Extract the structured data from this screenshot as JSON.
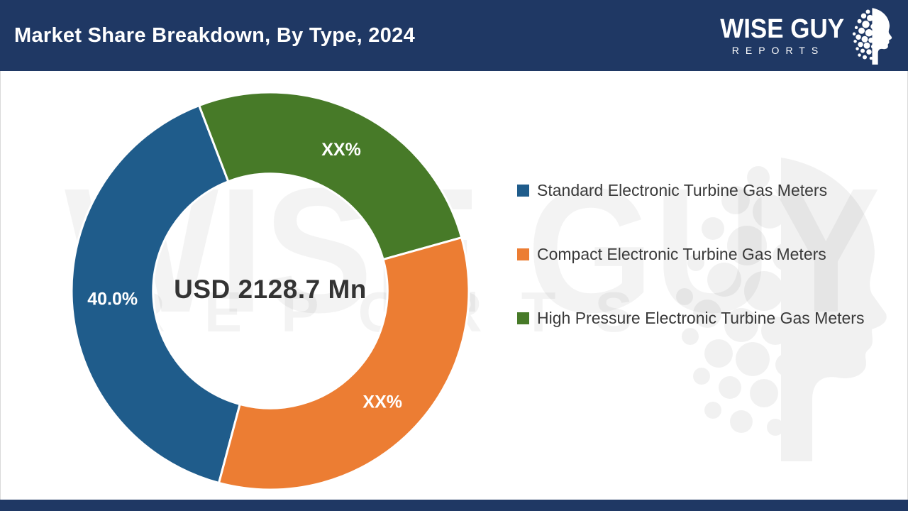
{
  "header": {
    "title": "Market Share Breakdown, By Type, 2024",
    "logo": {
      "line1": "WISE GUY",
      "line2": "REPORTS"
    }
  },
  "watermark": {
    "line1": "WISE GUY",
    "line2": "REPORTS"
  },
  "chart_data": {
    "type": "pie",
    "subtype": "donut",
    "title": "Market Share Breakdown, By Type, 2024",
    "center_label": "USD 2128.7 Mn",
    "start_angle_deg": 195,
    "direction": "clockwise",
    "inner_radius_ratio": 0.59,
    "segments": [
      {
        "name": "Standard Electronic Turbine Gas Meters",
        "value_pct": 40.0,
        "slice_label": "40.0%",
        "color": "#1F5C8B"
      },
      {
        "name": "High Pressure Electronic Turbine Gas Meters",
        "value_pct": 26.5,
        "slice_label": "XX%",
        "color": "#477A28"
      },
      {
        "name": "Compact Electronic Turbine Gas Meters",
        "value_pct": 33.5,
        "slice_label": "XX%",
        "color": "#EC7D33"
      }
    ],
    "legend_position": "right"
  },
  "legend": {
    "items": [
      {
        "label": "Standard Electronic Turbine Gas Meters",
        "color": "#1F5C8B"
      },
      {
        "label": "Compact Electronic Turbine Gas Meters",
        "color": "#EC7D33"
      },
      {
        "label": "High Pressure Electronic Turbine Gas Meters",
        "color": "#477A28"
      }
    ]
  },
  "colors": {
    "header_bg": "#1F3864",
    "footer_bg": "#1F3864",
    "segment_blue": "#1F5C8B",
    "segment_orange": "#EC7D33",
    "segment_green": "#477A28",
    "center_text": "#333333",
    "legend_text": "#3A3A3A",
    "slice_label_text": "#FFFFFF"
  }
}
